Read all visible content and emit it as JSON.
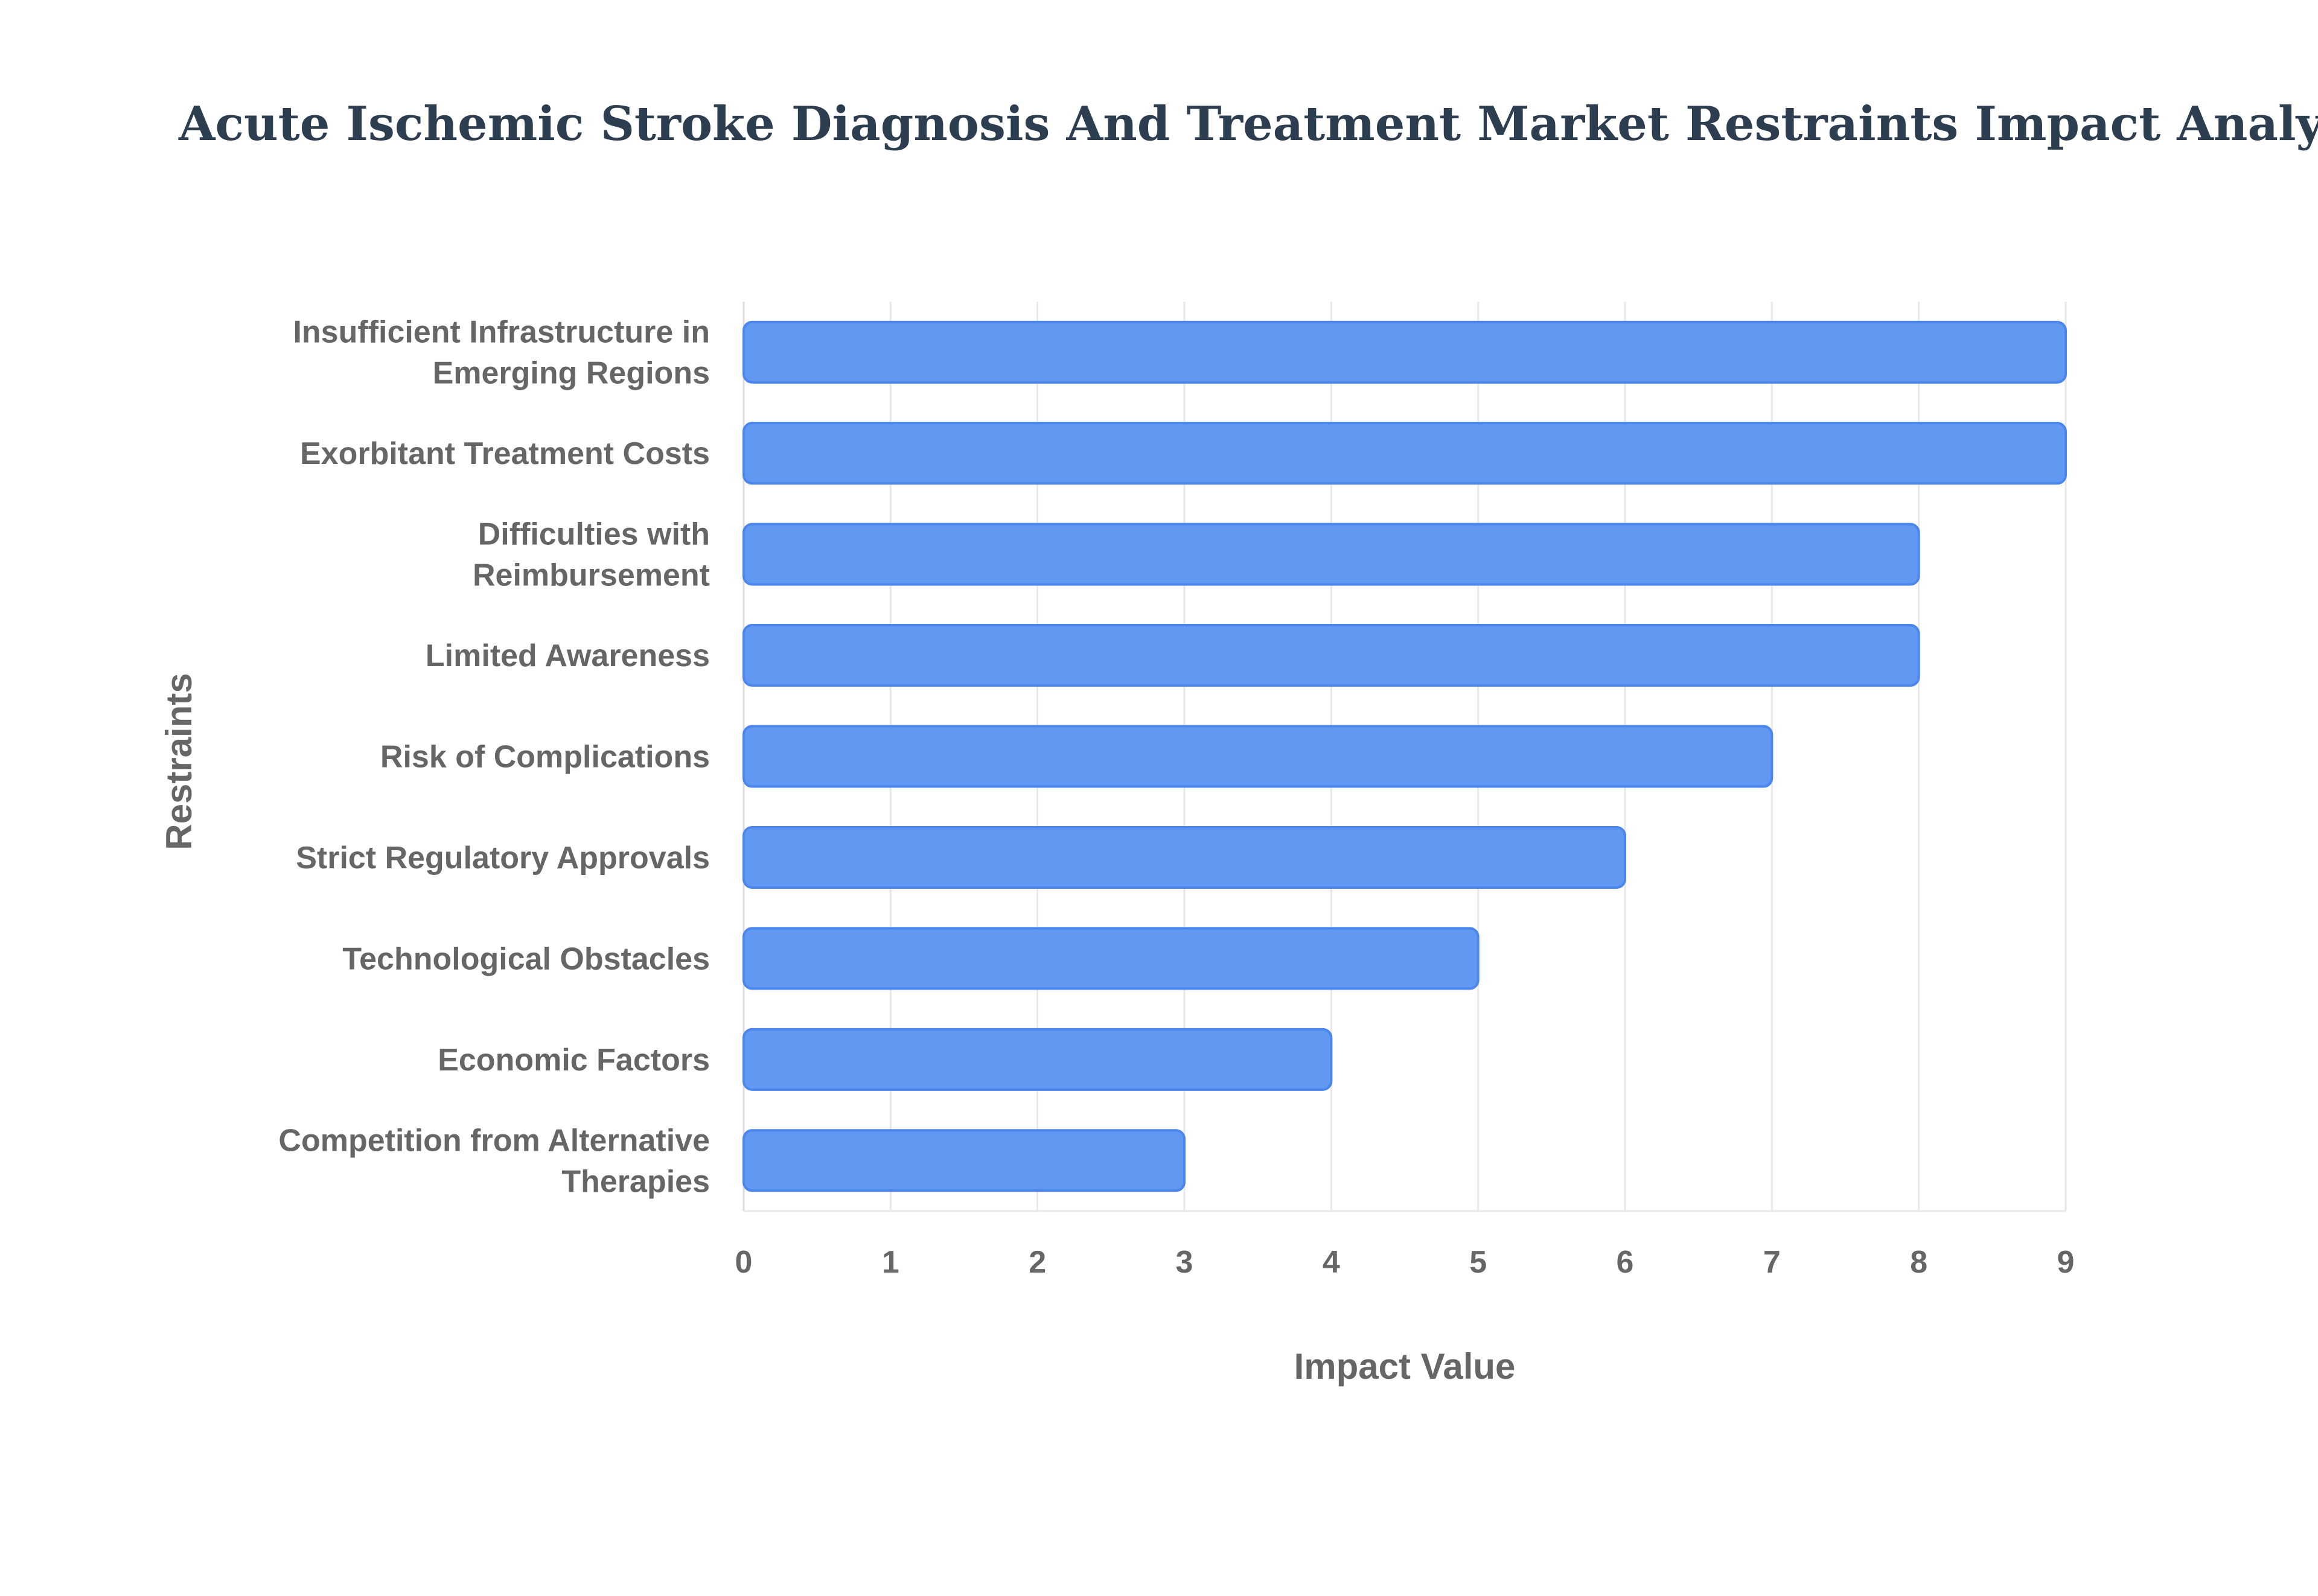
{
  "title": "Acute Ischemic Stroke Diagnosis And Treatment Market Restraints Impact Analysis",
  "colors": {
    "bar_fill": "#6199f2",
    "bar_stroke": "#4a86ec",
    "title": "#2c3e50",
    "label": "#666666",
    "grid": "#e8e8e8"
  },
  "chart_data": {
    "type": "bar",
    "orientation": "horizontal",
    "title": "Acute Ischemic Stroke Diagnosis And Treatment Market Restraints Impact Analysis",
    "xlabel": "Impact Value",
    "ylabel": "Restraints",
    "xlim": [
      0,
      9
    ],
    "xticks": [
      "0",
      "1",
      "2",
      "3",
      "4",
      "5",
      "6",
      "7",
      "8",
      "9"
    ],
    "grid": true,
    "legend": false,
    "categories": [
      [
        "Insufficient Infrastructure in",
        "Emerging Regions"
      ],
      [
        "Exorbitant Treatment Costs"
      ],
      [
        "Difficulties with",
        "Reimbursement"
      ],
      [
        "Limited Awareness"
      ],
      [
        "Risk of Complications"
      ],
      [
        "Strict Regulatory Approvals"
      ],
      [
        "Technological Obstacles"
      ],
      [
        "Economic Factors"
      ],
      [
        "Competition from Alternative",
        "Therapies"
      ]
    ],
    "values": [
      9,
      9,
      8,
      8,
      7,
      6,
      5,
      4,
      3
    ]
  }
}
